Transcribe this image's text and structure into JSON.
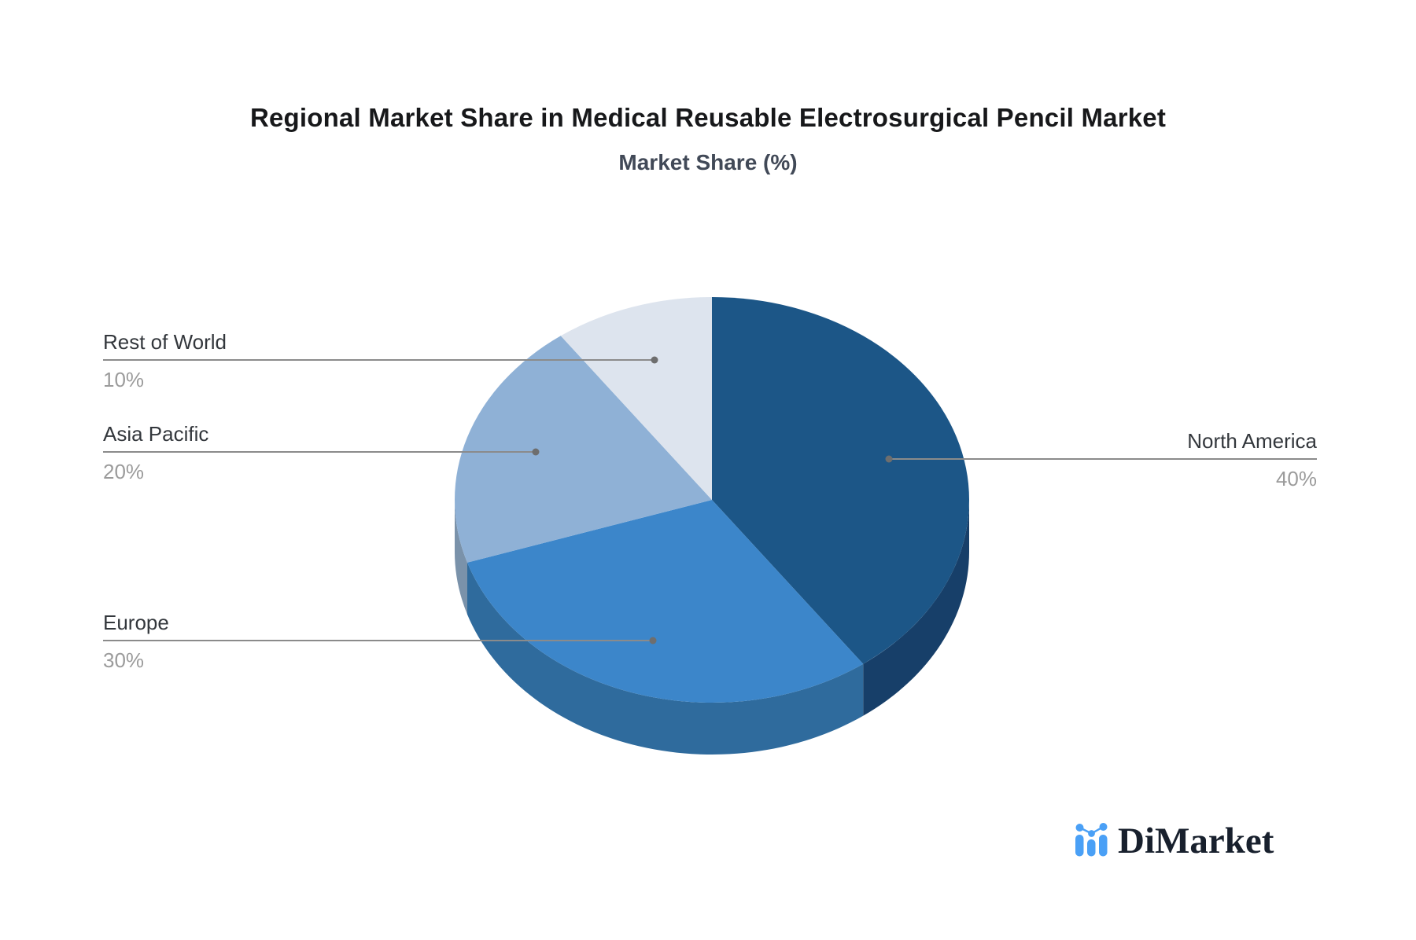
{
  "header": {
    "title": "Regional Market Share in Medical Reusable Electrosurgical Pencil Market",
    "subtitle": "Market Share (%)"
  },
  "chart_data": {
    "type": "pie",
    "style": "3d",
    "title": "Regional Market Share in Medical Reusable Electrosurgical Pencil Market",
    "subtitle": "Market Share (%)",
    "unit": "%",
    "start_angle_deg": 0,
    "direction": "clockwise",
    "labels_style": "callout",
    "legend_position": "none",
    "slices": [
      {
        "label": "North America",
        "value": 40,
        "display": "40%",
        "color": "#1C5687",
        "side_color": "#173F69"
      },
      {
        "label": "Europe",
        "value": 30,
        "display": "30%",
        "color": "#3C86CA",
        "side_color": "#2F6B9D"
      },
      {
        "label": "Asia Pacific",
        "value": 20,
        "display": "20%",
        "color": "#8FB1D6",
        "side_color": "#7A92AA"
      },
      {
        "label": "Rest of World",
        "value": 10,
        "display": "10%",
        "color": "#DDE4EE",
        "side_color": "#B9C2CE"
      }
    ]
  },
  "callout_style": {
    "line_color": "#8B8B8B",
    "dot_color": "#6E6E6E",
    "label_color": "#33373C",
    "value_color": "#9B9B9B"
  },
  "logo": {
    "text": "DiMarket",
    "icon": "bar-line-chart-icon",
    "icon_color": "#4AA0F6",
    "text_color": "#18202D"
  }
}
